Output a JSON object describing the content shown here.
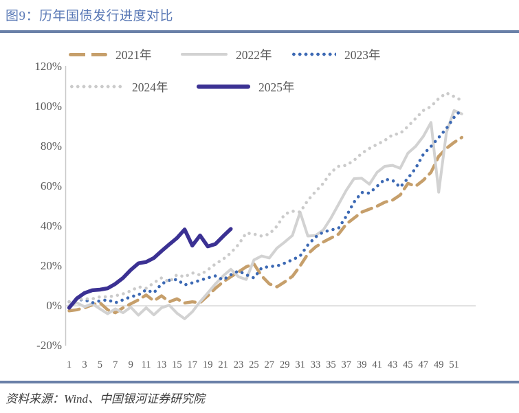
{
  "figure": {
    "title": "图9：历年国债发行进度对比"
  },
  "footer": {
    "source": "资料来源：Wind、中国银河证券研究院"
  },
  "chart_data": {
    "type": "line",
    "title": "历年国债发行进度对比",
    "x_axis": "week of year (1-52)",
    "x_tick_labels": [
      "1",
      "3",
      "5",
      "7",
      "9",
      "11",
      "13",
      "15",
      "17",
      "19",
      "21",
      "23",
      "25",
      "27",
      "29",
      "31",
      "33",
      "35",
      "37",
      "39",
      "41",
      "43",
      "45",
      "47",
      "49",
      "51"
    ],
    "y_tick_labels": [
      "120%",
      "100%",
      "80%",
      "60%",
      "40%",
      "20%",
      "0%",
      "-20%"
    ],
    "ylim": [
      -20,
      120
    ],
    "grid": "horizontal line at 0% only",
    "legend_position": "top, two rows",
    "colors": {
      "axis_line": "#c9c9c9",
      "zero_gridline": "#d9d9d9",
      "tick_text": "#595959",
      "title_text": "#5a79b6",
      "rule": "#6a80a8"
    },
    "series": [
      {
        "name": "2021年",
        "style": "dashed",
        "color": "#c69f6b",
        "line_width": 4.5,
        "values": [
          -2.5,
          -2,
          -1,
          0.5,
          1.5,
          -2,
          -3.5,
          -1,
          1,
          3,
          5.4,
          2.5,
          5,
          2,
          3.5,
          1.4,
          2,
          1.5,
          5,
          8.8,
          12,
          14.6,
          17,
          19.6,
          21,
          15,
          11,
          9.5,
          12,
          14.8,
          20,
          26,
          29.5,
          32,
          34,
          36,
          41,
          44,
          47,
          48.5,
          50,
          52,
          53,
          55.6,
          61.4,
          60,
          63,
          67,
          75,
          79,
          82,
          84.5
        ]
      },
      {
        "name": "2022年",
        "style": "solid",
        "color": "#d2d2d2",
        "line_width": 4,
        "values": [
          0,
          1.5,
          -0.5,
          1,
          -1.5,
          -4,
          -1.5,
          -3.5,
          -0.7,
          -4.7,
          -1,
          -4.5,
          -1,
          0.3,
          -3.7,
          -6.5,
          -3,
          2,
          6.4,
          11,
          15,
          18.3,
          14.6,
          13.2,
          23,
          25,
          24,
          29,
          32,
          35.3,
          47,
          35,
          35.3,
          38,
          44,
          51,
          58,
          63.8,
          64,
          61,
          67,
          70,
          70.5,
          69,
          76.6,
          80,
          85,
          92,
          57,
          87,
          98,
          96.3
        ]
      },
      {
        "name": "2023年",
        "style": "dotted",
        "color": "#3c69b4",
        "line_width": 4.5,
        "values": [
          2,
          3,
          3,
          1.5,
          2.5,
          3,
          1.5,
          3,
          4.5,
          5.5,
          8,
          6.5,
          11,
          12.8,
          13.2,
          10.5,
          11.5,
          12.8,
          14,
          15,
          13,
          15.6,
          17.5,
          15.6,
          14,
          19,
          19.7,
          20,
          21.4,
          23.1,
          25,
          30.5,
          34.5,
          37,
          38,
          39,
          45,
          52,
          56.9,
          56.5,
          60,
          63.5,
          63,
          59.5,
          64,
          69,
          76,
          80,
          84.4,
          89,
          94.6,
          98.6
        ]
      },
      {
        "name": "2024年",
        "style": "dotted",
        "color": "#cbcbcb",
        "line_width": 4.5,
        "values": [
          2,
          3,
          3.5,
          3.5,
          4.5,
          4.5,
          5,
          6,
          7.5,
          9.5,
          8.8,
          11.5,
          14,
          12,
          15.6,
          14.5,
          16.5,
          15.5,
          18,
          21,
          23.4,
          26.5,
          30.8,
          36.5,
          36,
          35,
          36,
          40,
          46,
          47.5,
          47,
          52.9,
          57.3,
          61.4,
          67,
          70,
          70.5,
          73,
          76.5,
          79,
          81,
          83,
          85.8,
          86.5,
          90,
          94,
          98,
          100,
          104,
          106.8,
          105,
          103
        ]
      },
      {
        "name": "2025年",
        "style": "solid",
        "color": "#3b3193",
        "line_width": 5.5,
        "values": [
          -1,
          3.7,
          6.4,
          7.8,
          8.1,
          8.8,
          11,
          14,
          18,
          21.3,
          22,
          24,
          27.5,
          30.8,
          34,
          38.3,
          30.2,
          35.3,
          29.8,
          31,
          34.9,
          38.6
        ]
      }
    ]
  }
}
